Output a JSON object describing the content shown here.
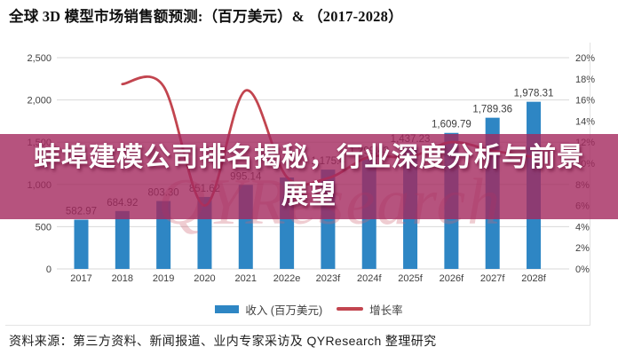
{
  "header": {
    "title": "全球 3D 模型市场销售额预测:（百万美元）& （2017-2028）"
  },
  "overlay_banner": {
    "line1": "蚌埠建模公司排名揭秘，行业深度分析与前景",
    "line2": "展望",
    "bg_color": "rgba(164,40,94,0.80)",
    "text_color": "#ffffff"
  },
  "watermark": {
    "text": "QYResearch",
    "color": "rgba(205,100,115,0.33)"
  },
  "colors": {
    "bar": "#2e86c4",
    "line": "#c2454f",
    "grid": "#d9d9d9",
    "axis_text": "#404040",
    "data_label": "#3d3d3d"
  },
  "chart_data": {
    "type": "bar",
    "title": "全球 3D 模型市场销售额预测:（百万美元）& （2017-2028）",
    "categories": [
      "2017",
      "2018",
      "2019",
      "2020",
      "2021",
      "2022e",
      "2023f",
      "2024f",
      "2025f",
      "2026f",
      "2027f",
      "2028f"
    ],
    "series": [
      {
        "name": "收入 (百万美元)",
        "type": "bar",
        "color": "#2e86c4",
        "values": [
          582.97,
          684.92,
          803.3,
          851.62,
          995.14,
          1082,
          1175.4,
          1299.43,
          1437.23,
          1609.79,
          1789.36,
          1978.31
        ],
        "data_labels": [
          "582.97",
          "684.92",
          "803.30",
          "851.62",
          "995.14",
          null,
          "1,175.4",
          "1,299.43",
          "1,437.23",
          "1,609.79",
          "1,789.36",
          "1,978.31"
        ]
      },
      {
        "name": "增长率",
        "type": "line",
        "color": "#c2454f",
        "values_pct": [
          null,
          17.5,
          17.3,
          6.0,
          16.9,
          8.7,
          8.6,
          10.6,
          10.6,
          12.0,
          11.2,
          10.6
        ]
      }
    ],
    "left_axis": {
      "label": "",
      "min": 0,
      "max": 2500,
      "tick_step": 500,
      "ticks": [
        "2,500",
        "2,000",
        "1,500",
        "1,000",
        "500",
        "0"
      ]
    },
    "right_axis": {
      "label": "",
      "min": 0,
      "max": 20,
      "tick_step": 2,
      "ticks": [
        "20%",
        "18%",
        "16%",
        "14%",
        "12%",
        "10%",
        "8%",
        "6%",
        "4%",
        "2%",
        "0%"
      ]
    },
    "grid": "horizontal",
    "legend_position": "bottom",
    "legend": [
      {
        "label": "收入 (百万美元)",
        "type": "bar",
        "color": "#2e86c4"
      },
      {
        "label": "增长率",
        "type": "line",
        "color": "#c2454f"
      }
    ]
  },
  "footer": {
    "source": "资料来源：第三方资料、新闻报道、业内专家采访及 QYResearch 整理研究"
  }
}
